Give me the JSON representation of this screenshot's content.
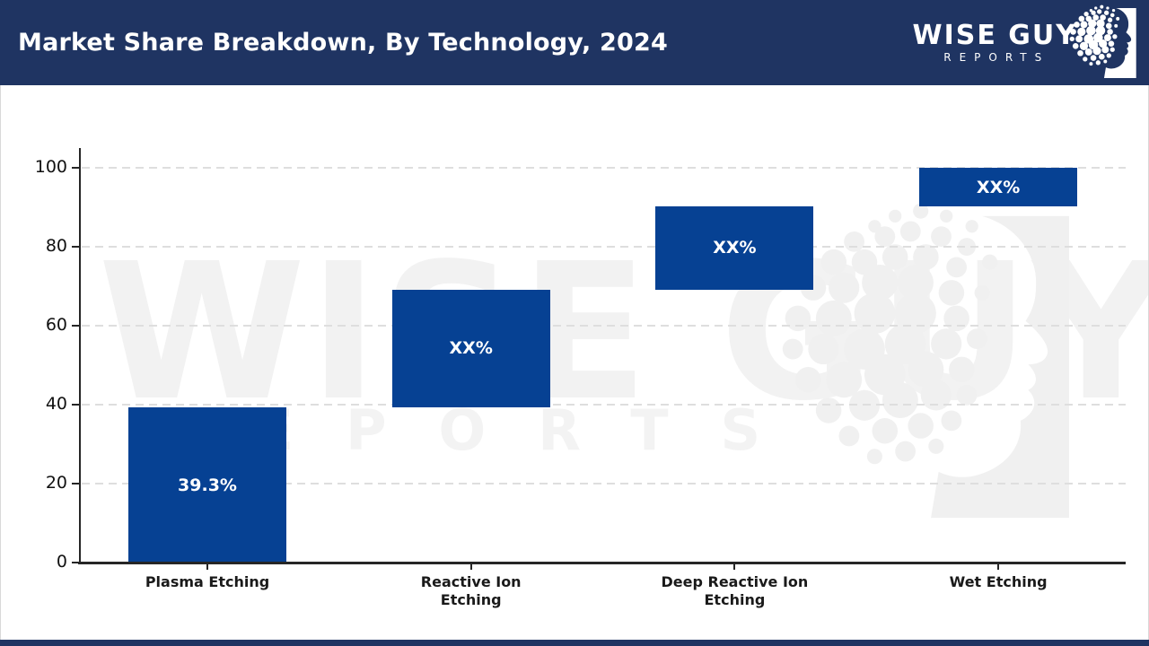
{
  "header": {
    "title": "Market Share Breakdown, By Technology, 2024",
    "logo": {
      "line1": "WISE GUY",
      "line2": "REPORTS"
    }
  },
  "watermark": {
    "line1": "WISE GUY",
    "line2": "REPORTS"
  },
  "colors": {
    "header_bg": "#1f3462",
    "footer_bg": "#1f3462",
    "bar": "#064193",
    "gridline": "#dedede",
    "axis": "#262626",
    "watermark": "#f2f2f2",
    "title_text": "#ffffff",
    "bar_label_text": "#ffffff"
  },
  "chart_data": {
    "type": "bar",
    "subtype": "waterfall",
    "title": "Market Share Breakdown, By Technology, 2024",
    "categories": [
      "Plasma Etching",
      "Reactive Ion\nEtching",
      "Deep Reactive Ion\nEtching",
      "Wet Etching"
    ],
    "segments": [
      {
        "category": "Plasma Etching",
        "start": 0,
        "end": 39.3,
        "label": "39.3%"
      },
      {
        "category": "Reactive Ion Etching",
        "start": 39.3,
        "end": 69.2,
        "label": "XX%"
      },
      {
        "category": "Deep Reactive Ion Etching",
        "start": 69.2,
        "end": 90.2,
        "label": "XX%"
      },
      {
        "category": "Wet Etching",
        "start": 90.2,
        "end": 100,
        "label": "XX%"
      }
    ],
    "yticks": [
      0,
      20,
      40,
      60,
      80,
      100
    ],
    "ylim": [
      0,
      105
    ],
    "grid": "horizontal-dashed",
    "legend": "none",
    "xlabel": "",
    "ylabel": ""
  }
}
